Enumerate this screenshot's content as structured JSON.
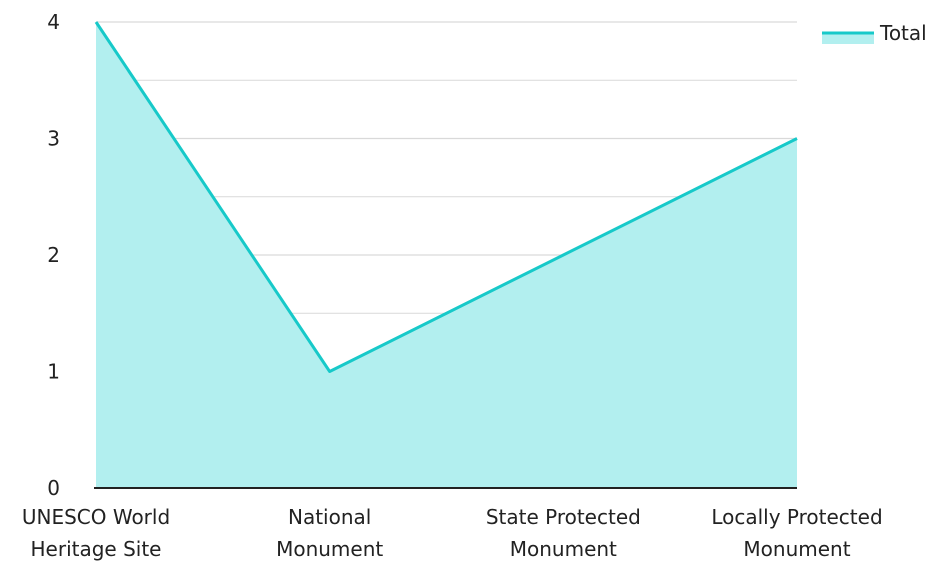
{
  "chart_data": {
    "type": "area",
    "categories": [
      "UNESCO World Heritage Site",
      "National Monument",
      "State Protected Monument",
      "Locally Protected Monument"
    ],
    "category_lines": [
      [
        "UNESCO World",
        "Heritage Site"
      ],
      [
        "National",
        "Monument"
      ],
      [
        "State Protected",
        "Monument"
      ],
      [
        "Locally Protected",
        "Monument"
      ]
    ],
    "series": [
      {
        "name": "Total",
        "values": [
          4,
          1,
          2,
          3
        ]
      }
    ],
    "yticks": [
      "0",
      "1",
      "2",
      "3",
      "4"
    ],
    "ylim": [
      0,
      4
    ],
    "minor_grid_step": 0.5,
    "grid": true,
    "legend": "top-right",
    "colors": {
      "line": "#17c9c9",
      "fill": "#b2efef",
      "grid": "#d9d9d9",
      "axis": "#222222"
    }
  }
}
